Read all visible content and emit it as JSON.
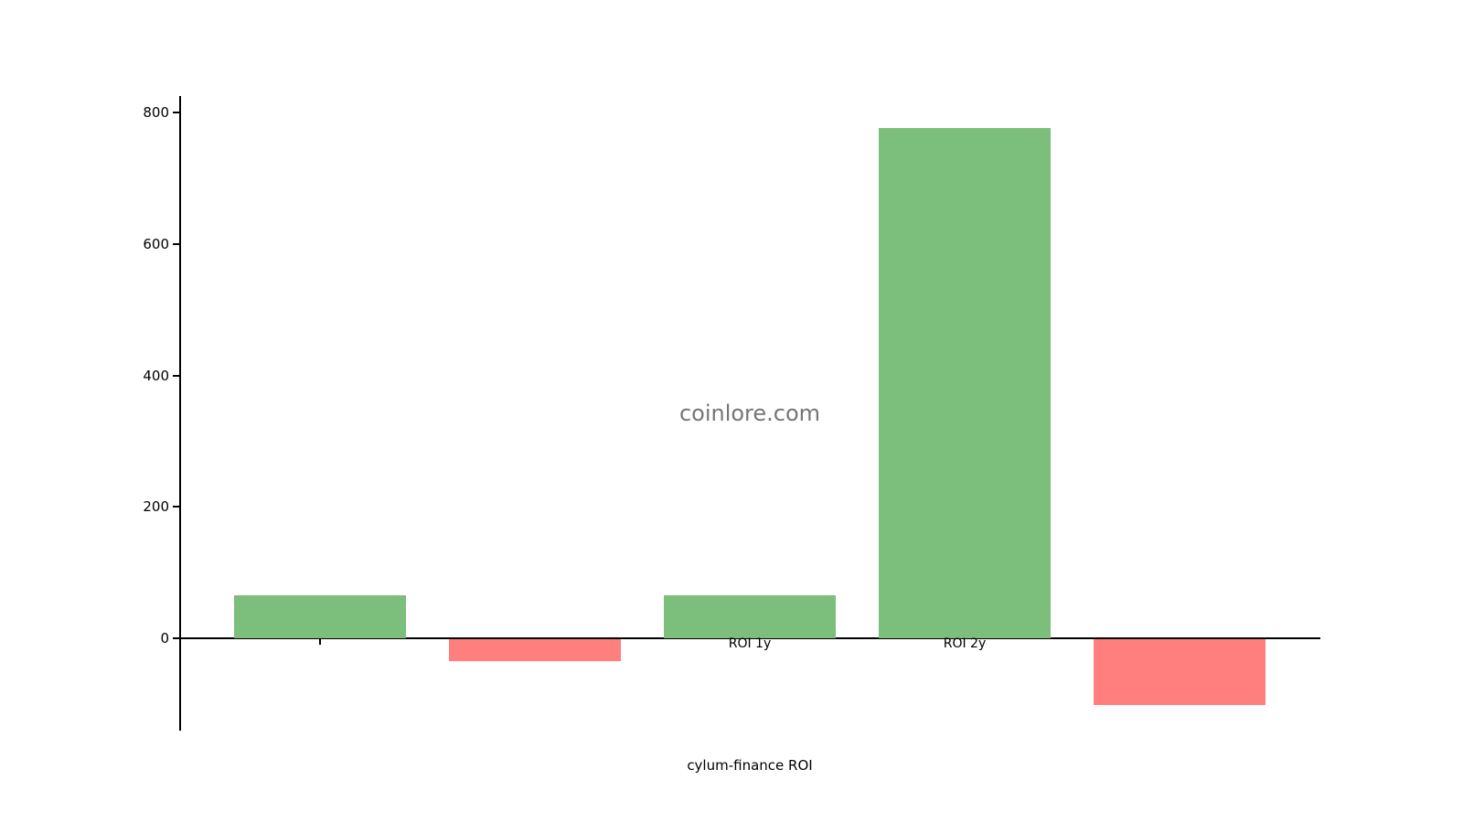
{
  "page": {
    "background_color": "#ffffff"
  },
  "chart_data": {
    "type": "bar",
    "title": "cylum-finance ROI",
    "watermark": "coinlore.com",
    "watermark_color": "#757575",
    "categories": [
      "",
      "",
      "ROI 1y",
      "ROI 2y",
      ""
    ],
    "values": [
      65,
      -33,
      65,
      777,
      -100
    ],
    "positive_color": "#7CBF7C",
    "negative_color": "#FF7F7F",
    "axis_color": "#000000",
    "y_ticks": [
      0,
      200,
      400,
      600,
      800
    ],
    "x_ticks": [
      {
        "index": 0,
        "label": ""
      },
      {
        "index": 2,
        "label": "ROI 1y"
      },
      {
        "index": 3,
        "label": "ROI 2y"
      }
    ],
    "ylim": [
      -140,
      825
    ],
    "grid": false,
    "legend": null,
    "xlabel": "cylum-finance ROI",
    "ylabel": ""
  }
}
